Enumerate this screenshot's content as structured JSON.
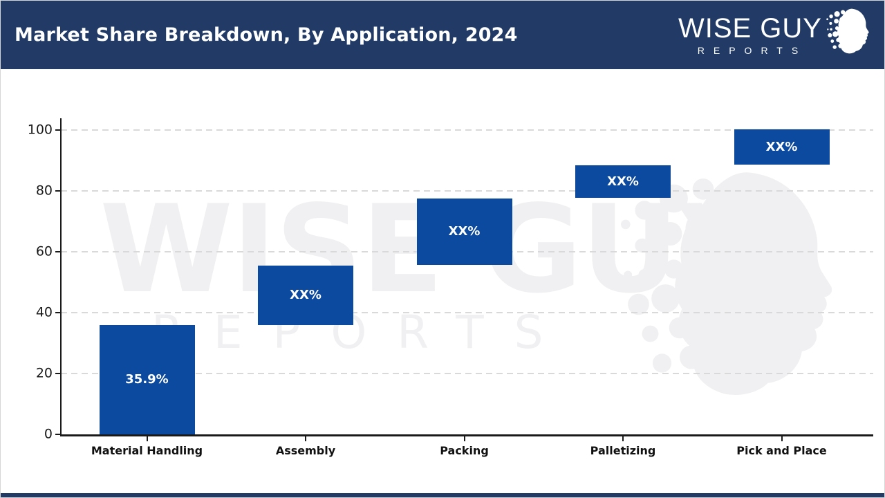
{
  "header": {
    "title": "Market Share Breakdown, By Application, 2024",
    "logo": {
      "line1": "WISE GUY",
      "line2": "REPORTS"
    }
  },
  "watermark": {
    "line1": "WISE GUY",
    "line2": "REPORTS"
  },
  "chart_data": {
    "type": "bar",
    "subtype": "waterfall",
    "title": "Market Share Breakdown, By Application, 2024",
    "xlabel": "",
    "ylabel": "",
    "categories": [
      "Material Handling",
      "Assembly",
      "Packing",
      "Palletizing",
      "Pick and Place"
    ],
    "segments": [
      {
        "category": "Material Handling",
        "start": 0,
        "end": 35.9,
        "label": "35.9%"
      },
      {
        "category": "Assembly",
        "start": 36.0,
        "end": 55.5,
        "label": "XX%"
      },
      {
        "category": "Packing",
        "start": 55.6,
        "end": 77.6,
        "label": "XX%"
      },
      {
        "category": "Palletizing",
        "start": 77.7,
        "end": 88.4,
        "label": "XX%"
      },
      {
        "category": "Pick and Place",
        "start": 88.6,
        "end": 100.2,
        "label": "XX%"
      }
    ],
    "yticks": [
      0,
      20,
      40,
      60,
      80,
      100
    ],
    "ylim": [
      0,
      100
    ],
    "grid": "dashed-horizontal",
    "legend": "none"
  },
  "colors": {
    "header_bg": "#213a66",
    "footer_bg": "#213a66",
    "bar_blue": "#0b4a9e",
    "bar_label": "#ffffff",
    "axis": "#1a1a1a",
    "grid": "#d9d9d9",
    "tick_label": "#1a1a1a",
    "category_label": "#111111",
    "watermark": "#f0f0f2",
    "title_text": "#ffffff"
  }
}
